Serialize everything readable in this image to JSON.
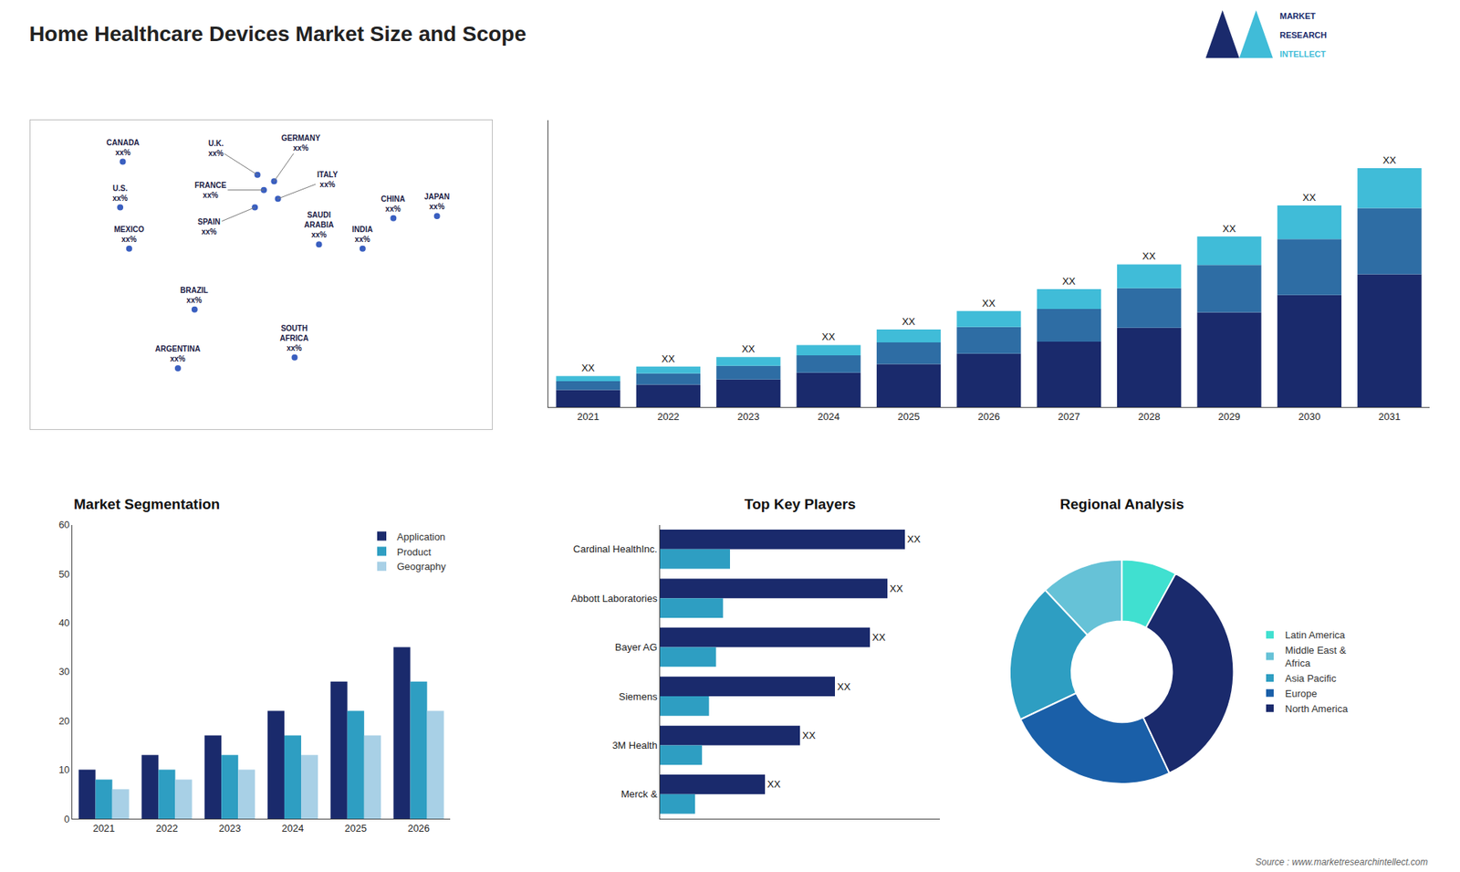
{
  "chart_data": [
    {
      "type": "bar",
      "title": "Home Healthcare Devices Market Size and Scope",
      "stacked": true,
      "categories": [
        "2021",
        "2022",
        "2023",
        "2024",
        "2025",
        "2026",
        "2027",
        "2028",
        "2029",
        "2030",
        "2031"
      ],
      "series": [
        {
          "color": "#1a2a6c",
          "values": [
            1.0,
            1.3,
            1.6,
            2.0,
            2.5,
            3.1,
            3.8,
            4.6,
            5.5,
            6.5,
            7.7
          ]
        },
        {
          "color": "#2e6da4",
          "values": [
            0.5,
            0.65,
            0.8,
            1.0,
            1.25,
            1.55,
            1.9,
            2.3,
            2.75,
            3.25,
            3.85
          ]
        },
        {
          "color": "#40bcd8",
          "values": [
            0.3,
            0.4,
            0.5,
            0.6,
            0.75,
            0.93,
            1.14,
            1.38,
            1.65,
            1.95,
            2.31
          ],
          "value_labels": [
            "XX",
            "XX",
            "XX",
            "XX",
            "XX",
            "XX",
            "XX",
            "XX",
            "XX",
            "XX",
            "XX"
          ]
        }
      ],
      "ylim": [
        0,
        16.632
      ],
      "yticks": [],
      "grid": false,
      "tick_labels": "x",
      "annotations": [
        "MARKET",
        "RESEARCH",
        "INTELLECT",
        "Source : www.marketresearchintellect.com"
      ]
    },
    {
      "type": "map",
      "xlim": [
        -180,
        180
      ],
      "ylim": [
        -60,
        82
      ],
      "grid": false,
      "tick_labels": false,
      "annotations": [
        {
          "text": "CANADA\nxx%",
          "x": -108,
          "y": 63
        },
        {
          "text": "U.S.\nxx%",
          "x": -110,
          "y": 42
        },
        {
          "text": "MEXICO\nxx%",
          "x": -103,
          "y": 23
        },
        {
          "text": "BRAZIL\nxx%",
          "x": -52,
          "y": -5
        },
        {
          "text": "ARGENTINA\nxx%",
          "x": -65,
          "y": -32
        },
        {
          "text": "U.K.\nxx%",
          "x": -3,
          "y": 57
        },
        {
          "text": "FRANCE\nxx%",
          "x": 2,
          "y": 50
        },
        {
          "text": "GERMANY\nxx%",
          "x": 10,
          "y": 54
        },
        {
          "text": "SPAIN\nxx%",
          "x": -5,
          "y": 42
        },
        {
          "text": "ITALY\nxx%",
          "x": 13,
          "y": 46
        },
        {
          "text": "SAUDI\nARABIA\nxx%",
          "x": 45,
          "y": 25
        },
        {
          "text": "CHINA\nxx%",
          "x": 103,
          "y": 37
        },
        {
          "text": "INDIA\nxx%",
          "x": 79,
          "y": 23
        },
        {
          "text": "JAPAN\nxx%",
          "x": 137,
          "y": 38
        },
        {
          "text": "SOUTH\nAFRICA\nxx%",
          "x": 26,
          "y": -27
        }
      ]
    },
    {
      "type": "bar",
      "title": "Market Segmentation",
      "categories": [
        "2021",
        "2022",
        "2023",
        "2024",
        "2025",
        "2026"
      ],
      "series": [
        {
          "name": "Application",
          "color": "#1a2a6c",
          "values": [
            10,
            13,
            17,
            22,
            28,
            35
          ]
        },
        {
          "name": "Product",
          "color": "#2e9ec2",
          "values": [
            8,
            10,
            13,
            17,
            22,
            28
          ]
        },
        {
          "name": "Geography",
          "color": "#a8d0e6",
          "values": [
            6,
            8,
            10,
            13,
            17,
            22
          ]
        }
      ],
      "ylim": [
        0,
        60
      ],
      "yticks": [
        0,
        10,
        20,
        30,
        40,
        50,
        60
      ],
      "grid": false,
      "legend": "upper right"
    },
    {
      "type": "bar",
      "title": "Top Key Players",
      "orientation": "horizontal",
      "categories": [
        "Cardinal HealthInc.",
        "Abbott Laboratories",
        "Bayer AG",
        "Siemens",
        "3M Health",
        "Merck &"
      ],
      "series": [
        {
          "color": "#1a2a6c",
          "values": [
            7.0,
            6.5,
            6.0,
            5.0,
            4.0,
            3.0
          ],
          "value_labels": [
            "XX",
            "XX",
            "XX",
            "XX",
            "XX",
            "XX"
          ]
        },
        {
          "color": "#2e9ec2",
          "values": [
            2.0,
            1.8,
            1.6,
            1.4,
            1.2,
            1.0
          ]
        }
      ],
      "xlim": [
        0,
        8
      ],
      "xticks": [],
      "grid": false,
      "tick_labels": "y"
    },
    {
      "type": "pie",
      "title": "Regional Analysis",
      "categories": [
        "Latin America",
        "Middle East &\nAfrica",
        "Asia Pacific",
        "Europe",
        "North America"
      ],
      "values": [
        8,
        12,
        20,
        25,
        35
      ],
      "colors": [
        "#40e0d0",
        "#66c2d7",
        "#2e9ec2",
        "#1a5fa8",
        "#1a2a6c"
      ],
      "legend": "right"
    }
  ]
}
